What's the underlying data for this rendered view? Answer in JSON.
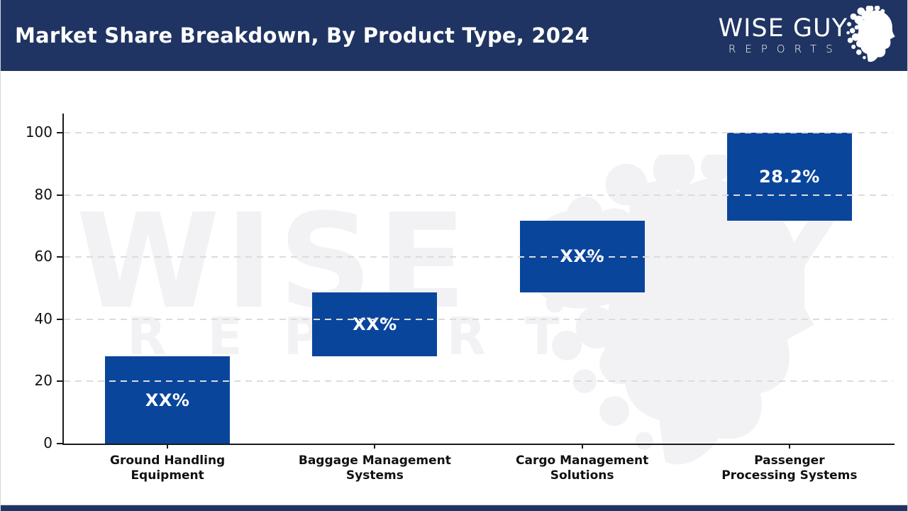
{
  "header": {
    "title": "Market Share Breakdown, By Product Type, 2024",
    "logo": {
      "brand": "WISE GUY",
      "sub": "REPORTS"
    }
  },
  "watermark": {
    "brand": "WISE GUY",
    "sub": "REPORTS"
  },
  "colors": {
    "header_navy": "#1f3462",
    "bar_blue": "#0a459c",
    "grid": "#dcdcdc",
    "axis": "#1a1a1a",
    "watermark": "#f2f2f5",
    "bar_label": "#ffffff"
  },
  "chart_data": {
    "type": "bar",
    "subtype": "floating-waterfall",
    "title": "Market Share Breakdown, By Product Type, 2024",
    "categories": [
      "Ground Handling Equipment",
      "Baggage Management Systems",
      "Cargo Management Solutions",
      "Passenger Processing Systems"
    ],
    "categories_lines": [
      [
        "Ground Handling",
        "Equipment"
      ],
      [
        "Baggage Management",
        "Systems"
      ],
      [
        "Cargo Management",
        "Solutions"
      ],
      [
        "Passenger",
        "Processing Systems"
      ]
    ],
    "segments": [
      {
        "category": "Ground Handling Equipment",
        "label": "XX%",
        "start": 0,
        "end": 28,
        "height": 28
      },
      {
        "category": "Baggage Management Systems",
        "label": "XX%",
        "start": 28,
        "end": 48.6,
        "height": 20.6
      },
      {
        "category": "Cargo Management Solutions",
        "label": "XX%",
        "start": 48.6,
        "end": 71.8,
        "height": 23.2
      },
      {
        "category": "Passenger Processing Systems",
        "label": "28.2%",
        "start": 71.8,
        "end": 100,
        "height": 28.2
      }
    ],
    "ylim": [
      0,
      100
    ],
    "yticks": [
      0,
      20,
      40,
      60,
      80,
      100
    ],
    "xlabel": "",
    "ylabel": "",
    "grid": "horizontal-dashed",
    "legend": "none"
  }
}
